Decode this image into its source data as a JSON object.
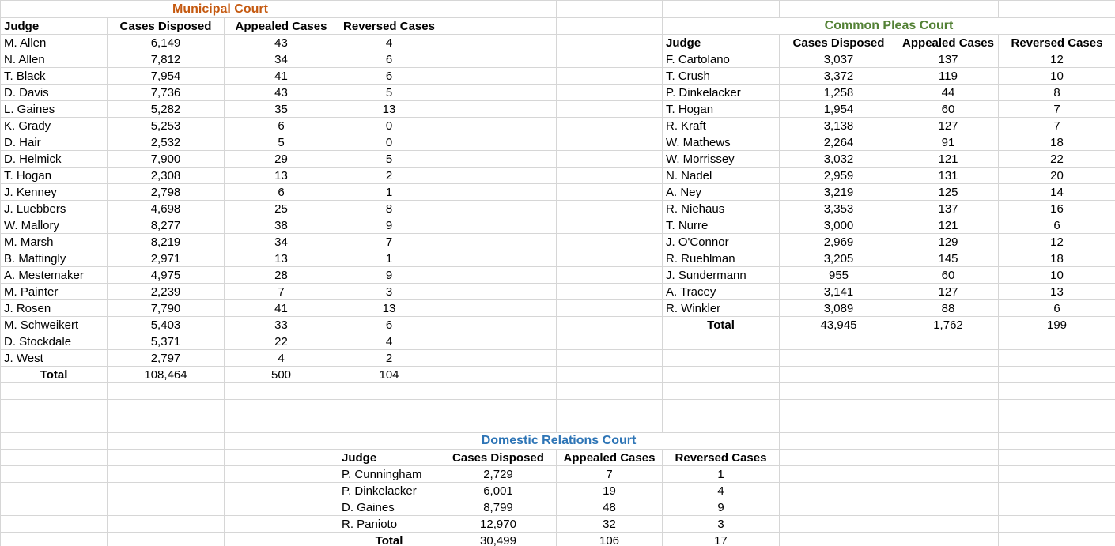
{
  "sheet": {
    "background": "#ffffff",
    "gridline_color": "#d6d6d6",
    "text_color": "#000000"
  },
  "tables": [
    {
      "id": "municipal",
      "title": "Municipal Court",
      "title_color": "#c55a11",
      "columns": [
        "Judge",
        "Cases Disposed",
        "Appealed Cases",
        "Reversed Cases"
      ],
      "rows": [
        [
          "M. Allen",
          "6,149",
          "43",
          "4"
        ],
        [
          "N. Allen",
          "7,812",
          "34",
          "6"
        ],
        [
          "T. Black",
          "7,954",
          "41",
          "6"
        ],
        [
          "D. Davis",
          "7,736",
          "43",
          "5"
        ],
        [
          "L. Gaines",
          "5,282",
          "35",
          "13"
        ],
        [
          "K. Grady",
          "5,253",
          "6",
          "0"
        ],
        [
          "D. Hair",
          "2,532",
          "5",
          "0"
        ],
        [
          "D. Helmick",
          "7,900",
          "29",
          "5"
        ],
        [
          "T. Hogan",
          "2,308",
          "13",
          "2"
        ],
        [
          "J. Kenney",
          "2,798",
          "6",
          "1"
        ],
        [
          "J. Luebbers",
          "4,698",
          "25",
          "8"
        ],
        [
          "W. Mallory",
          "8,277",
          "38",
          "9"
        ],
        [
          "M. Marsh",
          "8,219",
          "34",
          "7"
        ],
        [
          "B. Mattingly",
          "2,971",
          "13",
          "1"
        ],
        [
          "A. Mestemaker",
          "4,975",
          "28",
          "9"
        ],
        [
          "M. Painter",
          "2,239",
          "7",
          "3"
        ],
        [
          "J. Rosen",
          "7,790",
          "41",
          "13"
        ],
        [
          "M. Schweikert",
          "5,403",
          "33",
          "6"
        ],
        [
          "D. Stockdale",
          "5,371",
          "22",
          "4"
        ],
        [
          "J. West",
          "2,797",
          "4",
          "2"
        ]
      ],
      "total": [
        "Total",
        "108,464",
        "500",
        "104"
      ]
    },
    {
      "id": "common-pleas",
      "title": "Common Pleas Court",
      "title_color": "#538135",
      "columns": [
        "Judge",
        "Cases Disposed",
        "Appealed Cases",
        "Reversed Cases"
      ],
      "rows": [
        [
          "F. Cartolano",
          "3,037",
          "137",
          "12"
        ],
        [
          "T. Crush",
          "3,372",
          "119",
          "10"
        ],
        [
          "P. Dinkelacker",
          "1,258",
          "44",
          "8"
        ],
        [
          "T. Hogan",
          "1,954",
          "60",
          "7"
        ],
        [
          "R. Kraft",
          "3,138",
          "127",
          "7"
        ],
        [
          "W. Mathews",
          "2,264",
          "91",
          "18"
        ],
        [
          "W. Morrissey",
          "3,032",
          "121",
          "22"
        ],
        [
          "N. Nadel",
          "2,959",
          "131",
          "20"
        ],
        [
          "A. Ney",
          "3,219",
          "125",
          "14"
        ],
        [
          "R. Niehaus",
          "3,353",
          "137",
          "16"
        ],
        [
          "T. Nurre",
          "3,000",
          "121",
          "6"
        ],
        [
          "J. O'Connor",
          "2,969",
          "129",
          "12"
        ],
        [
          "R. Ruehlman",
          "3,205",
          "145",
          "18"
        ],
        [
          "J. Sundermann",
          "955",
          "60",
          "10"
        ],
        [
          "A. Tracey",
          "3,141",
          "127",
          "13"
        ],
        [
          "R. Winkler",
          "3,089",
          "88",
          "6"
        ]
      ],
      "total": [
        "Total",
        "43,945",
        "1,762",
        "199"
      ]
    },
    {
      "id": "domestic-relations",
      "title": "Domestic Relations Court",
      "title_color": "#2e75b6",
      "columns": [
        "Judge",
        "Cases Disposed",
        "Appealed Cases",
        "Reversed Cases"
      ],
      "rows": [
        [
          "P. Cunningham",
          "2,729",
          "7",
          "1"
        ],
        [
          "P. Dinkelacker",
          "6,001",
          "19",
          "4"
        ],
        [
          "D. Gaines",
          "8,799",
          "48",
          "9"
        ],
        [
          "R. Panioto",
          "12,970",
          "32",
          "3"
        ]
      ],
      "total": [
        "Total",
        "30,499",
        "106",
        "17"
      ]
    }
  ]
}
